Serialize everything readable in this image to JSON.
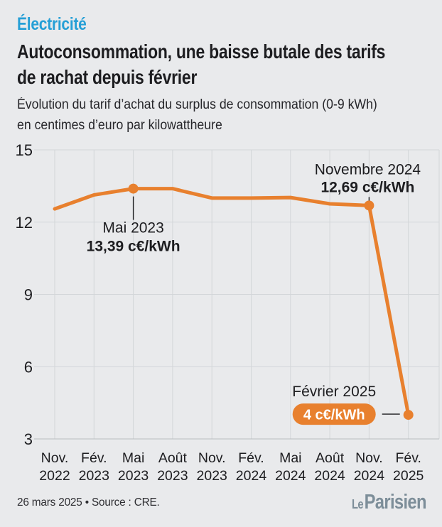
{
  "header": {
    "kicker": "Électricité",
    "title_line1": "Autoconsommation, une baisse butale des tarifs",
    "title_line2": "de rachat depuis février",
    "subtitle_line1": "Évolution du tarif d’achat du surplus de consommation (0-9 kWh)",
    "subtitle_line2": "en centimes d’euro par kilowattheure"
  },
  "chart_data": {
    "type": "line",
    "categories": [
      "Nov. 2022",
      "Fév. 2023",
      "Mai 2023",
      "Août 2023",
      "Nov. 2023",
      "Fév. 2024",
      "Mai 2024",
      "Août 2024",
      "Nov. 2024",
      "Fév. 2025"
    ],
    "values": [
      12.55,
      13.13,
      13.39,
      13.39,
      13.0,
      13.0,
      13.02,
      12.76,
      12.69,
      4
    ],
    "ylim": [
      3,
      15
    ],
    "yticks": [
      3,
      6,
      9,
      12,
      15
    ],
    "grid": true,
    "legend": "none",
    "annotations": [
      {
        "index": 2,
        "label": "Mai 2023",
        "value_label": "13,39 c€/kWh",
        "style": "below"
      },
      {
        "index": 8,
        "label": "Novembre 2024",
        "value_label": "12,69 c€/kWh",
        "style": "above"
      },
      {
        "index": 9,
        "label": "Février 2025",
        "value_label": "4 c€/kWh",
        "style": "pill-left"
      }
    ]
  },
  "footer": {
    "source": "26 mars 2025 • Source : CRE.",
    "logo_le": "Le",
    "logo_parisien": "Parisien"
  },
  "colors": {
    "background": "#E9EAEC",
    "accent_orange": "#E8802E",
    "kicker_blue": "#259FD6",
    "text_dark": "#1D1D20",
    "grid": "#D3D6D9",
    "axis": "#B9BDC0",
    "logo_gray": "#7D8E99",
    "pill_text": "#FFFFFF"
  }
}
